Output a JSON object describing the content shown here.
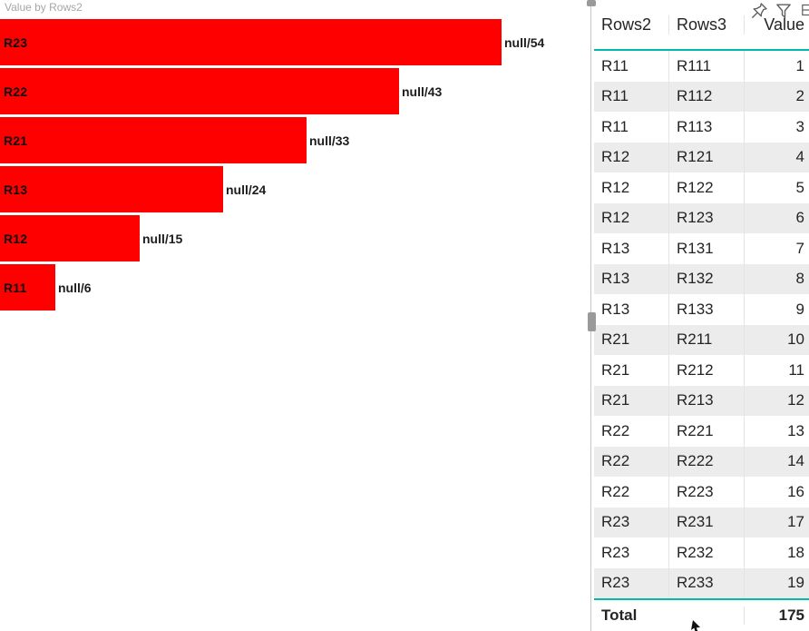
{
  "chart_visual": {
    "title": "Value by Rows2",
    "colors": {
      "bar": "#FE0000",
      "title_text": "#A6A6A6",
      "label_text": "#000000"
    },
    "chart_data": {
      "type": "bar",
      "orientation": "horizontal",
      "title": "Value by Rows2",
      "categories": [
        "R23",
        "R22",
        "R21",
        "R13",
        "R12",
        "R11"
      ],
      "values": [
        54,
        43,
        33,
        24,
        15,
        6
      ],
      "data_labels": [
        "null/54",
        "null/43",
        "null/33",
        "null/24",
        "null/15",
        "null/6"
      ],
      "xlim": [
        0,
        57
      ],
      "grid": false,
      "legend": false,
      "axis_labels": "none"
    }
  },
  "table_visual": {
    "columns": [
      "Rows2",
      "Rows3",
      "Value"
    ],
    "rows": [
      [
        "R11",
        "R111",
        "1"
      ],
      [
        "R11",
        "R112",
        "2"
      ],
      [
        "R11",
        "R113",
        "3"
      ],
      [
        "R12",
        "R121",
        "4"
      ],
      [
        "R12",
        "R122",
        "5"
      ],
      [
        "R12",
        "R123",
        "6"
      ],
      [
        "R13",
        "R131",
        "7"
      ],
      [
        "R13",
        "R132",
        "8"
      ],
      [
        "R13",
        "R133",
        "9"
      ],
      [
        "R21",
        "R211",
        "10"
      ],
      [
        "R21",
        "R212",
        "11"
      ],
      [
        "R21",
        "R213",
        "12"
      ],
      [
        "R22",
        "R221",
        "13"
      ],
      [
        "R22",
        "R222",
        "14"
      ],
      [
        "R22",
        "R223",
        "16"
      ],
      [
        "R23",
        "R231",
        "17"
      ],
      [
        "R23",
        "R232",
        "18"
      ],
      [
        "R23",
        "R233",
        "19"
      ]
    ],
    "total_label": "Total",
    "total_value": "175",
    "colors": {
      "accent": "#01B8AA",
      "alt_row": "#ECECEC",
      "text": "#252423"
    }
  },
  "visual_header_icons": [
    "pin-icon",
    "filter-icon",
    "focus-mode-icon"
  ]
}
